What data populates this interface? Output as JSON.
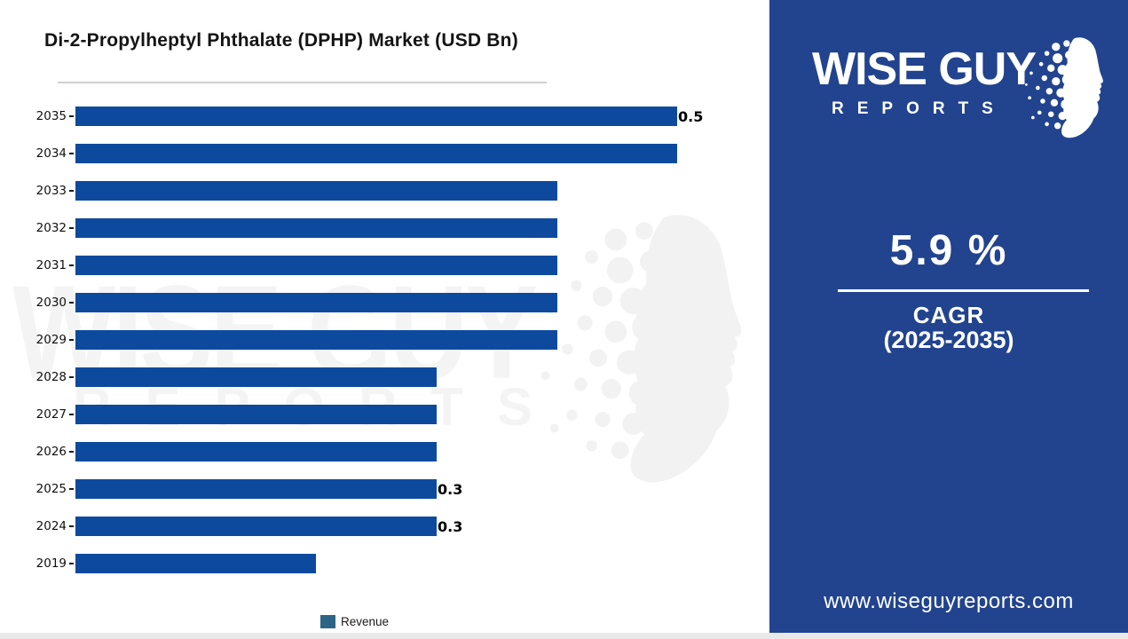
{
  "chart": {
    "title": "Di-2-Propylheptyl Phthalate (DPHP) Market (USD Bn)",
    "legend_label": "Revenue"
  },
  "chart_data": {
    "type": "bar",
    "orientation": "horizontal",
    "title": "Di-2-Propylheptyl Phthalate (DPHP) Market (USD Bn)",
    "xlabel": "",
    "ylabel": "",
    "categories": [
      "2035",
      "2034",
      "2033",
      "2032",
      "2031",
      "2030",
      "2029",
      "2028",
      "2027",
      "2026",
      "2025",
      "2024",
      "2019"
    ],
    "series": [
      {
        "name": "Revenue",
        "values": [
          0.5,
          0.5,
          0.4,
          0.4,
          0.4,
          0.4,
          0.4,
          0.3,
          0.3,
          0.3,
          0.3,
          0.3,
          0.2
        ],
        "value_labels": [
          "0.5",
          "",
          "",
          "",
          "",
          "",
          "",
          "",
          "",
          "",
          "0.3",
          "0.3",
          ""
        ]
      }
    ],
    "xlim": [
      0,
      0.575
    ],
    "grid": false,
    "bar_color": "#0d4a9e",
    "legend": {
      "label": "Revenue",
      "swatch_color": "#2c6485",
      "position": "bottom-center"
    }
  },
  "watermark": {
    "line1": "WISE GUY",
    "line2": "REPORTS",
    "icon": "dotted-head-profile"
  },
  "sidebar": {
    "background_color": "#22438e",
    "logo": {
      "line1": "WISE GUY",
      "line2": "REPORTS",
      "icon": "dotted-head-profile"
    },
    "cagr": {
      "value": "5.9 %",
      "label": "CAGR",
      "period": "(2025-2035)"
    },
    "website": "www.wiseguyreports.com"
  }
}
